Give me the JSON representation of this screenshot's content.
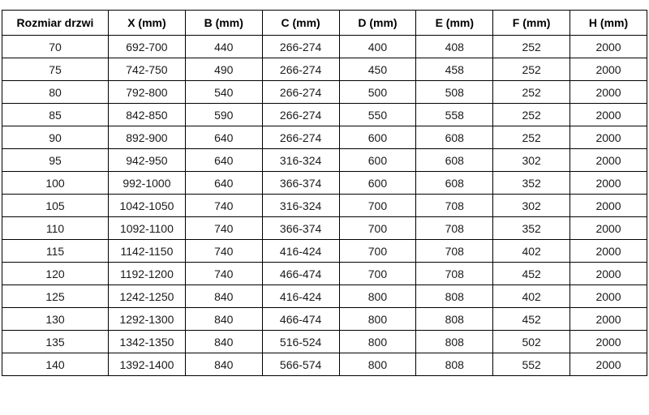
{
  "chart_data": {
    "type": "table",
    "columns": [
      "Rozmiar drzwi",
      "X (mm)",
      "B (mm)",
      "C (mm)",
      "D (mm)",
      "E (mm)",
      "F (mm)",
      "H (mm)"
    ],
    "rows": [
      [
        "70",
        "692-700",
        "440",
        "266-274",
        "400",
        "408",
        "252",
        "2000"
      ],
      [
        "75",
        "742-750",
        "490",
        "266-274",
        "450",
        "458",
        "252",
        "2000"
      ],
      [
        "80",
        "792-800",
        "540",
        "266-274",
        "500",
        "508",
        "252",
        "2000"
      ],
      [
        "85",
        "842-850",
        "590",
        "266-274",
        "550",
        "558",
        "252",
        "2000"
      ],
      [
        "90",
        "892-900",
        "640",
        "266-274",
        "600",
        "608",
        "252",
        "2000"
      ],
      [
        "95",
        "942-950",
        "640",
        "316-324",
        "600",
        "608",
        "302",
        "2000"
      ],
      [
        "100",
        "992-1000",
        "640",
        "366-374",
        "600",
        "608",
        "352",
        "2000"
      ],
      [
        "105",
        "1042-1050",
        "740",
        "316-324",
        "700",
        "708",
        "302",
        "2000"
      ],
      [
        "110",
        "1092-1100",
        "740",
        "366-374",
        "700",
        "708",
        "352",
        "2000"
      ],
      [
        "115",
        "1142-1150",
        "740",
        "416-424",
        "700",
        "708",
        "402",
        "2000"
      ],
      [
        "120",
        "1192-1200",
        "740",
        "466-474",
        "700",
        "708",
        "452",
        "2000"
      ],
      [
        "125",
        "1242-1250",
        "840",
        "416-424",
        "800",
        "808",
        "402",
        "2000"
      ],
      [
        "130",
        "1292-1300",
        "840",
        "466-474",
        "800",
        "808",
        "452",
        "2000"
      ],
      [
        "135",
        "1342-1350",
        "840",
        "516-524",
        "800",
        "808",
        "502",
        "2000"
      ],
      [
        "140",
        "1392-1400",
        "840",
        "566-574",
        "800",
        "808",
        "552",
        "2000"
      ]
    ]
  },
  "colors": {
    "border": "#000000",
    "text": "#1a1a1a",
    "background": "#ffffff"
  }
}
